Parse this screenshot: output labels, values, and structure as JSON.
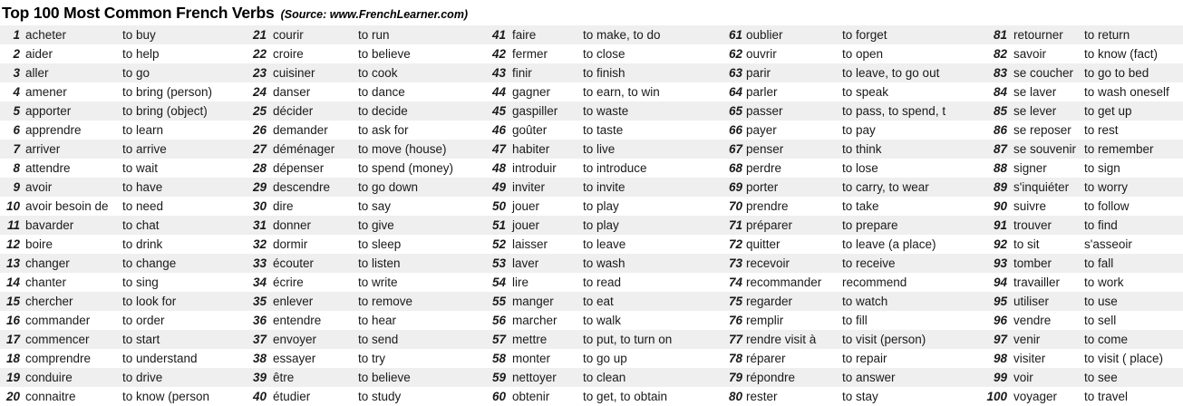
{
  "title": "Top 100 Most Common French Verbs",
  "source": "(Source: www.FrenchLearner.com)",
  "stripe_color": "#efefef",
  "groups": [
    {
      "rows": [
        {
          "n": "1",
          "fr": "acheter",
          "en": "to buy"
        },
        {
          "n": "2",
          "fr": "aider",
          "en": "to help"
        },
        {
          "n": "3",
          "fr": "aller",
          "en": "to go"
        },
        {
          "n": "4",
          "fr": "amener",
          "en": "to bring (person)"
        },
        {
          "n": "5",
          "fr": "apporter",
          "en": "to bring (object)"
        },
        {
          "n": "6",
          "fr": "apprendre",
          "en": "to learn"
        },
        {
          "n": "7",
          "fr": "arriver",
          "en": "to arrive"
        },
        {
          "n": "8",
          "fr": "attendre",
          "en": "to wait"
        },
        {
          "n": "9",
          "fr": "avoir",
          "en": "to have"
        },
        {
          "n": "10",
          "fr": "avoir besoin de",
          "en": "to need"
        },
        {
          "n": "11",
          "fr": "bavarder",
          "en": "to chat"
        },
        {
          "n": "12",
          "fr": "boire",
          "en": "to drink"
        },
        {
          "n": "13",
          "fr": "changer",
          "en": "to change"
        },
        {
          "n": "14",
          "fr": "chanter",
          "en": "to sing"
        },
        {
          "n": "15",
          "fr": "chercher",
          "en": "to look for"
        },
        {
          "n": "16",
          "fr": "commander",
          "en": "to order"
        },
        {
          "n": "17",
          "fr": "commencer",
          "en": "to start"
        },
        {
          "n": "18",
          "fr": "comprendre",
          "en": "to understand"
        },
        {
          "n": "19",
          "fr": "conduire",
          "en": "to drive"
        },
        {
          "n": "20",
          "fr": "connaitre",
          "en": "to know (person"
        }
      ]
    },
    {
      "rows": [
        {
          "n": "21",
          "fr": "courir",
          "en": "to run"
        },
        {
          "n": "22",
          "fr": "croire",
          "en": "to believe"
        },
        {
          "n": "23",
          "fr": "cuisiner",
          "en": "to cook"
        },
        {
          "n": "24",
          "fr": "danser",
          "en": "to dance"
        },
        {
          "n": "25",
          "fr": "décider",
          "en": "to decide"
        },
        {
          "n": "26",
          "fr": "demander",
          "en": "to ask for"
        },
        {
          "n": "27",
          "fr": "déménager",
          "en": "to move (house)"
        },
        {
          "n": "28",
          "fr": "dépenser",
          "en": "to spend (money)"
        },
        {
          "n": "29",
          "fr": "descendre",
          "en": "to go down"
        },
        {
          "n": "30",
          "fr": "dire",
          "en": "to say"
        },
        {
          "n": "31",
          "fr": "donner",
          "en": "to give"
        },
        {
          "n": "32",
          "fr": "dormir",
          "en": "to sleep"
        },
        {
          "n": "33",
          "fr": "écouter",
          "en": "to listen"
        },
        {
          "n": "34",
          "fr": "écrire",
          "en": "to write"
        },
        {
          "n": "35",
          "fr": "enlever",
          "en": "to remove"
        },
        {
          "n": "36",
          "fr": "entendre",
          "en": "to hear"
        },
        {
          "n": "37",
          "fr": "envoyer",
          "en": "to send"
        },
        {
          "n": "38",
          "fr": "essayer",
          "en": "to try"
        },
        {
          "n": "39",
          "fr": "être",
          "en": "to believe"
        },
        {
          "n": "40",
          "fr": "étudier",
          "en": "to study"
        }
      ]
    },
    {
      "rows": [
        {
          "n": "41",
          "fr": "faire",
          "en": "to make, to do"
        },
        {
          "n": "42",
          "fr": "fermer",
          "en": "to close"
        },
        {
          "n": "43",
          "fr": "finir",
          "en": "to finish"
        },
        {
          "n": "44",
          "fr": "gagner",
          "en": "to earn, to win"
        },
        {
          "n": "45",
          "fr": "gaspiller",
          "en": "to waste"
        },
        {
          "n": "46",
          "fr": "goûter",
          "en": "to taste"
        },
        {
          "n": "47",
          "fr": "habiter",
          "en": "to live"
        },
        {
          "n": "48",
          "fr": "introduir",
          "en": "to introduce"
        },
        {
          "n": "49",
          "fr": "inviter",
          "en": "to invite"
        },
        {
          "n": "50",
          "fr": "jouer",
          "en": "to play"
        },
        {
          "n": "51",
          "fr": "jouer",
          "en": "to play"
        },
        {
          "n": "52",
          "fr": "laisser",
          "en": "to leave"
        },
        {
          "n": "53",
          "fr": "laver",
          "en": "to wash"
        },
        {
          "n": "54",
          "fr": "lire",
          "en": "to read"
        },
        {
          "n": "55",
          "fr": "manger",
          "en": "to eat"
        },
        {
          "n": "56",
          "fr": "marcher",
          "en": "to walk"
        },
        {
          "n": "57",
          "fr": "mettre",
          "en": "to put, to turn on"
        },
        {
          "n": "58",
          "fr": "monter",
          "en": "to go up"
        },
        {
          "n": "59",
          "fr": "nettoyer",
          "en": "to clean"
        },
        {
          "n": "60",
          "fr": "obtenir",
          "en": "to get, to obtain"
        }
      ]
    },
    {
      "rows": [
        {
          "n": "61",
          "fr": "oublier",
          "en": "to forget"
        },
        {
          "n": "62",
          "fr": "ouvrir",
          "en": "to open"
        },
        {
          "n": "63",
          "fr": "parir",
          "en": "to leave, to go out"
        },
        {
          "n": "64",
          "fr": "parler",
          "en": "to speak"
        },
        {
          "n": "65",
          "fr": "passer",
          "en": "to pass, to spend, t"
        },
        {
          "n": "66",
          "fr": "payer",
          "en": "to pay"
        },
        {
          "n": "67",
          "fr": "penser",
          "en": "to think"
        },
        {
          "n": "68",
          "fr": "perdre",
          "en": "to lose"
        },
        {
          "n": "69",
          "fr": "porter",
          "en": "to carry, to wear"
        },
        {
          "n": "70",
          "fr": "prendre",
          "en": "to take"
        },
        {
          "n": "71",
          "fr": "préparer",
          "en": "to prepare"
        },
        {
          "n": "72",
          "fr": "quitter",
          "en": "to leave (a place)"
        },
        {
          "n": "73",
          "fr": "recevoir",
          "en": "to receive"
        },
        {
          "n": "74",
          "fr": "recommander",
          "en": "recommend"
        },
        {
          "n": "75",
          "fr": "regarder",
          "en": "to watch"
        },
        {
          "n": "76",
          "fr": "remplir",
          "en": "to fill"
        },
        {
          "n": "77",
          "fr": "rendre visit à",
          "en": "to visit (person)"
        },
        {
          "n": "78",
          "fr": "réparer",
          "en": "to repair"
        },
        {
          "n": "79",
          "fr": "répondre",
          "en": "to answer"
        },
        {
          "n": "80",
          "fr": "rester",
          "en": "to stay"
        }
      ]
    },
    {
      "rows": [
        {
          "n": "81",
          "fr": "retourner",
          "en": "to return"
        },
        {
          "n": "82",
          "fr": "savoir",
          "en": "to know (fact)"
        },
        {
          "n": "83",
          "fr": "se coucher",
          "en": "to go to bed"
        },
        {
          "n": "84",
          "fr": "se laver",
          "en": "to wash oneself"
        },
        {
          "n": "85",
          "fr": "se lever",
          "en": "to get up"
        },
        {
          "n": "86",
          "fr": "se reposer",
          "en": "to rest"
        },
        {
          "n": "87",
          "fr": "se souvenir",
          "en": "to remember"
        },
        {
          "n": "88",
          "fr": "signer",
          "en": "to sign"
        },
        {
          "n": "89",
          "fr": "s'inquiéter",
          "en": "to worry"
        },
        {
          "n": "90",
          "fr": "suivre",
          "en": "to follow"
        },
        {
          "n": "91",
          "fr": "trouver",
          "en": "to find"
        },
        {
          "n": "92",
          "fr": "to sit",
          "en": "s'asseoir"
        },
        {
          "n": "93",
          "fr": "tomber",
          "en": "to fall"
        },
        {
          "n": "94",
          "fr": "travailler",
          "en": "to work"
        },
        {
          "n": "95",
          "fr": "utiliser",
          "en": "to use"
        },
        {
          "n": "96",
          "fr": "vendre",
          "en": "to sell"
        },
        {
          "n": "97",
          "fr": "venir",
          "en": "to come"
        },
        {
          "n": "98",
          "fr": "visiter",
          "en": "to visit ( place)"
        },
        {
          "n": "99",
          "fr": "voir",
          "en": "to see"
        },
        {
          "n": "100",
          "fr": "voyager",
          "en": "to travel"
        }
      ]
    }
  ]
}
